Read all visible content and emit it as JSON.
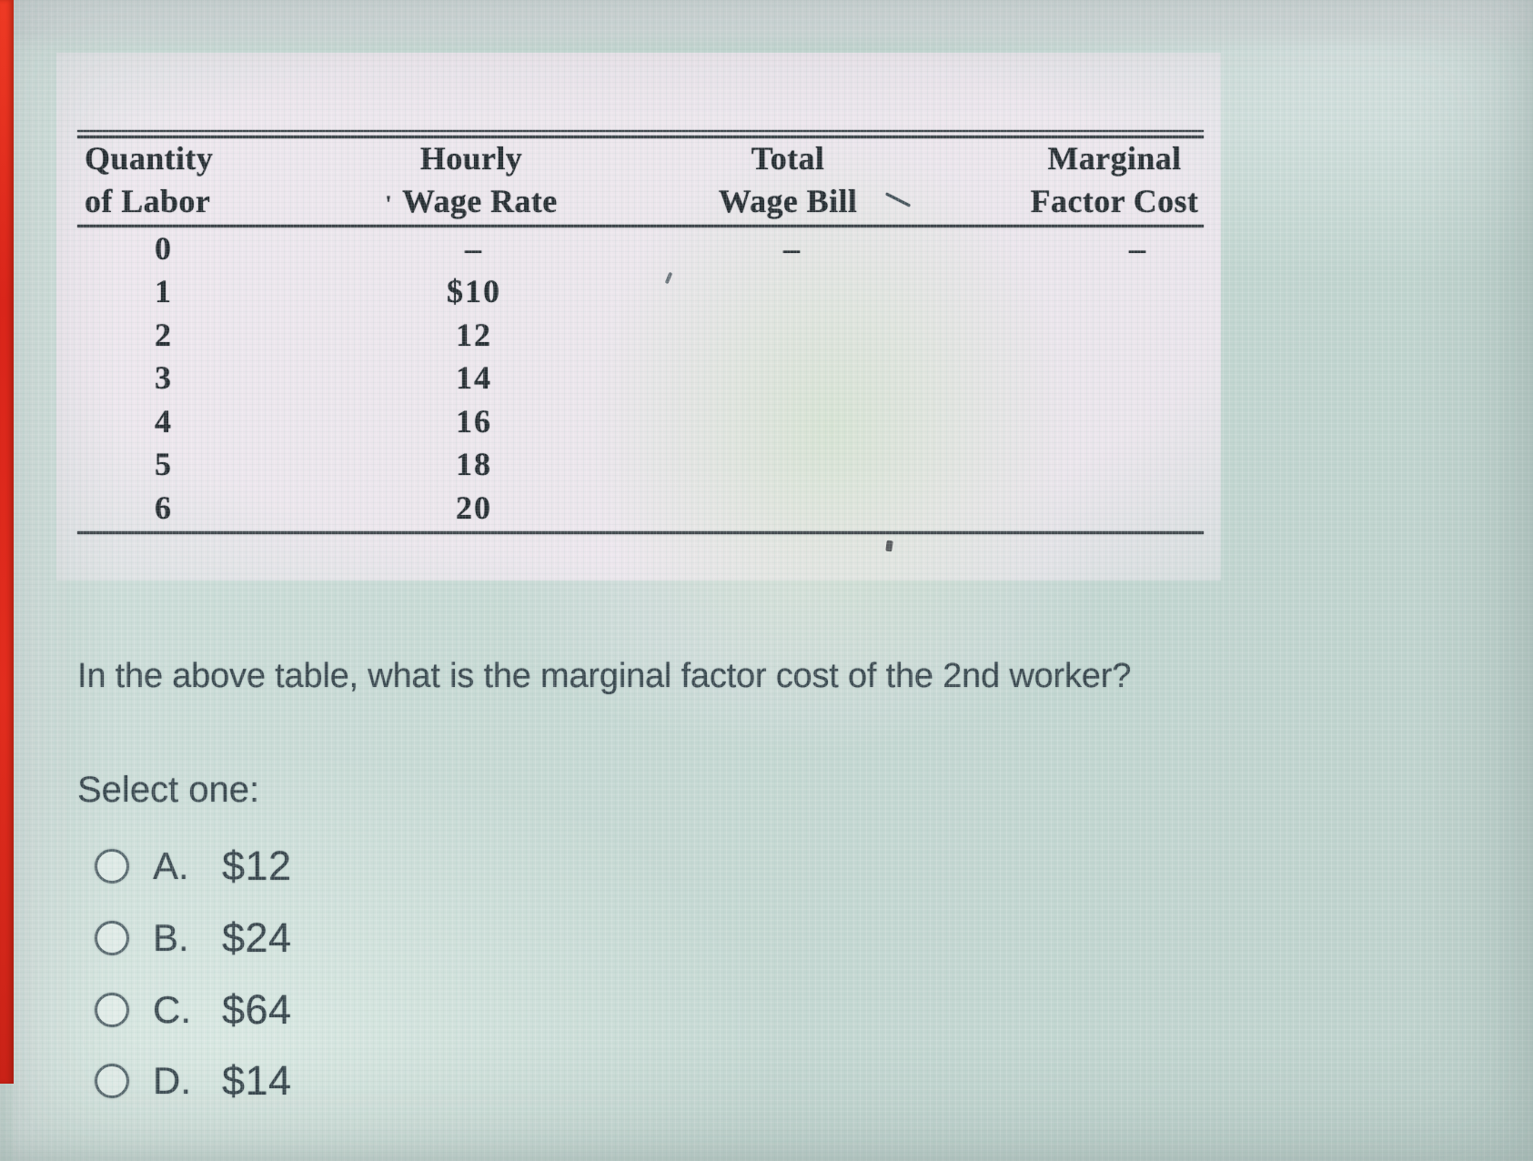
{
  "table": {
    "columns": [
      {
        "line1": "Quantity",
        "line2": "of Labor"
      },
      {
        "line1": "Hourly",
        "line2": "Wage Rate",
        "tick": "'"
      },
      {
        "line1": "Total",
        "line2": "Wage Bill"
      },
      {
        "line1": "Marginal",
        "line2": "Factor Cost"
      }
    ],
    "rows": [
      {
        "qty": "0",
        "wage": "–",
        "bill": "–",
        "mfc": "–"
      },
      {
        "qty": "1",
        "wage": "$10",
        "bill": "",
        "mfc": ""
      },
      {
        "qty": "2",
        "wage": "12",
        "bill": "",
        "mfc": ""
      },
      {
        "qty": "3",
        "wage": "14",
        "bill": "",
        "mfc": ""
      },
      {
        "qty": "4",
        "wage": "16",
        "bill": "",
        "mfc": ""
      },
      {
        "qty": "5",
        "wage": "18",
        "bill": "",
        "mfc": ""
      },
      {
        "qty": "6",
        "wage": "20",
        "bill": "",
        "mfc": ""
      }
    ]
  },
  "question": {
    "text": "In the above table, what is the marginal factor cost of the 2nd worker?"
  },
  "prompt": {
    "label": "Select one:"
  },
  "options": [
    {
      "letter": "A.",
      "value": "$12"
    },
    {
      "letter": "B.",
      "value": "$24"
    },
    {
      "letter": "C.",
      "value": "$64"
    },
    {
      "letter": "D.",
      "value": "$14"
    }
  ],
  "colors": {
    "background": "#c6d8d3",
    "sheet": "#f6e9f3",
    "red_strip": "#dd2b1c",
    "table_text": "#272e33",
    "body_text": "#3b4950",
    "rule": "#3d4449"
  }
}
